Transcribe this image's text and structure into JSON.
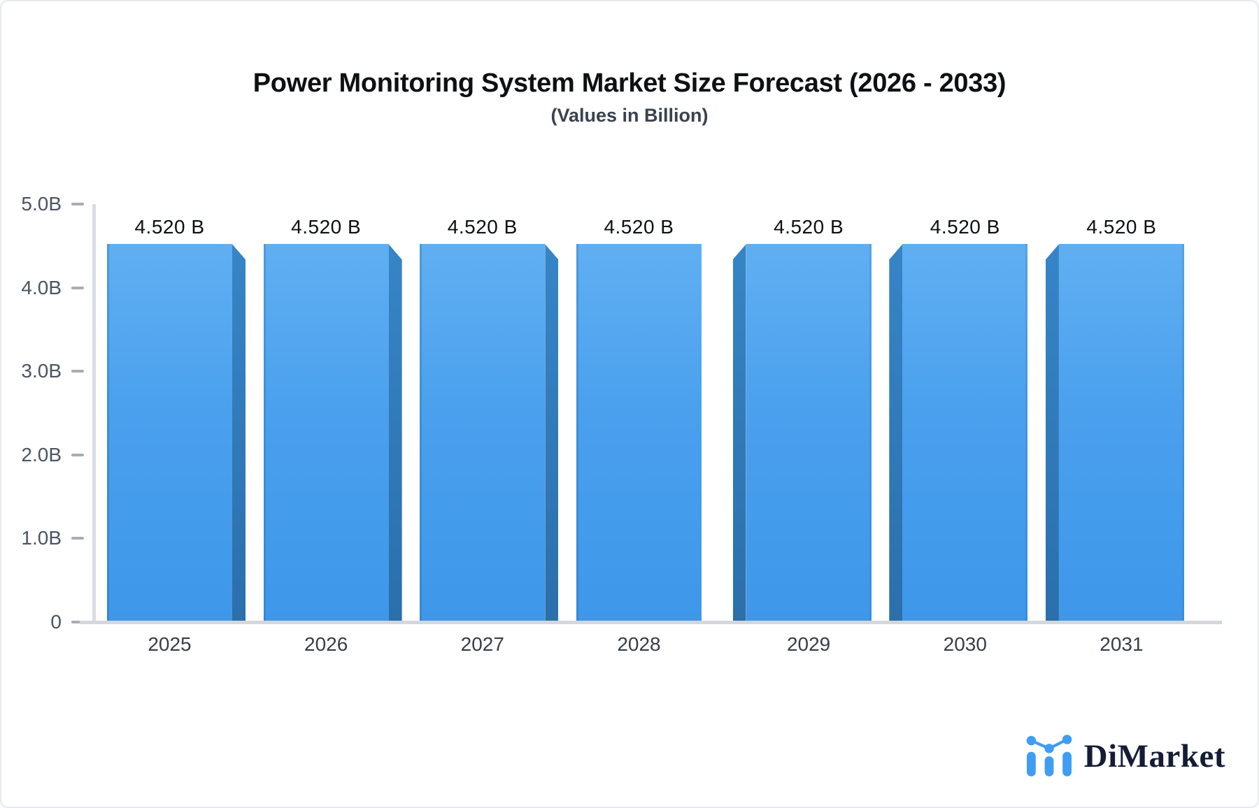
{
  "header": {
    "title": "Power Monitoring System Market Size Forecast (2026 - 2033)",
    "subtitle": "(Values in Billion)"
  },
  "chart_data": {
    "type": "bar",
    "title": "Power Monitoring System Market Size Forecast (2026 - 2033)",
    "subtitle": "(Values in Billion)",
    "unit": "Billion",
    "categories": [
      "2025",
      "2026",
      "2027",
      "2028",
      "2029",
      "2030",
      "2031"
    ],
    "values": [
      4.52,
      4.52,
      4.52,
      4.52,
      4.52,
      4.52,
      4.52
    ],
    "bar_labels": [
      "4.520 B",
      "4.520 B",
      "4.520 B",
      "4.520 B",
      "4.520 B",
      "4.520 B",
      "4.520 B"
    ],
    "bar_3d_direction": [
      "right",
      "right",
      "right",
      "none",
      "left",
      "left",
      "left"
    ],
    "ylim": [
      0,
      5
    ],
    "yticks": [
      {
        "value": 5,
        "label": "5.0B"
      },
      {
        "value": 4,
        "label": "4.0B"
      },
      {
        "value": 3,
        "label": "3.0B"
      },
      {
        "value": 2,
        "label": "2.0B"
      },
      {
        "value": 1,
        "label": "1.0B"
      },
      {
        "value": 0,
        "label": "0"
      }
    ],
    "grid": false,
    "legend": "none",
    "colors": {
      "bar_face_top": "#60aff2",
      "bar_face_bottom": "#3e97ea",
      "bar_side": "#2f78b8",
      "axis_line": "#dadde1",
      "baseline": "#d4d7db",
      "tick_mark": "#a6adb5",
      "y_tick_label": "#4b5462",
      "x_label": "#363e4a",
      "value_label": "#0c0f13"
    }
  },
  "brand": {
    "name": "DiMarket",
    "icon": "bar-chart-trend-logo-icon",
    "icon_color": "#3f9df2",
    "text_color": "#141c36"
  }
}
